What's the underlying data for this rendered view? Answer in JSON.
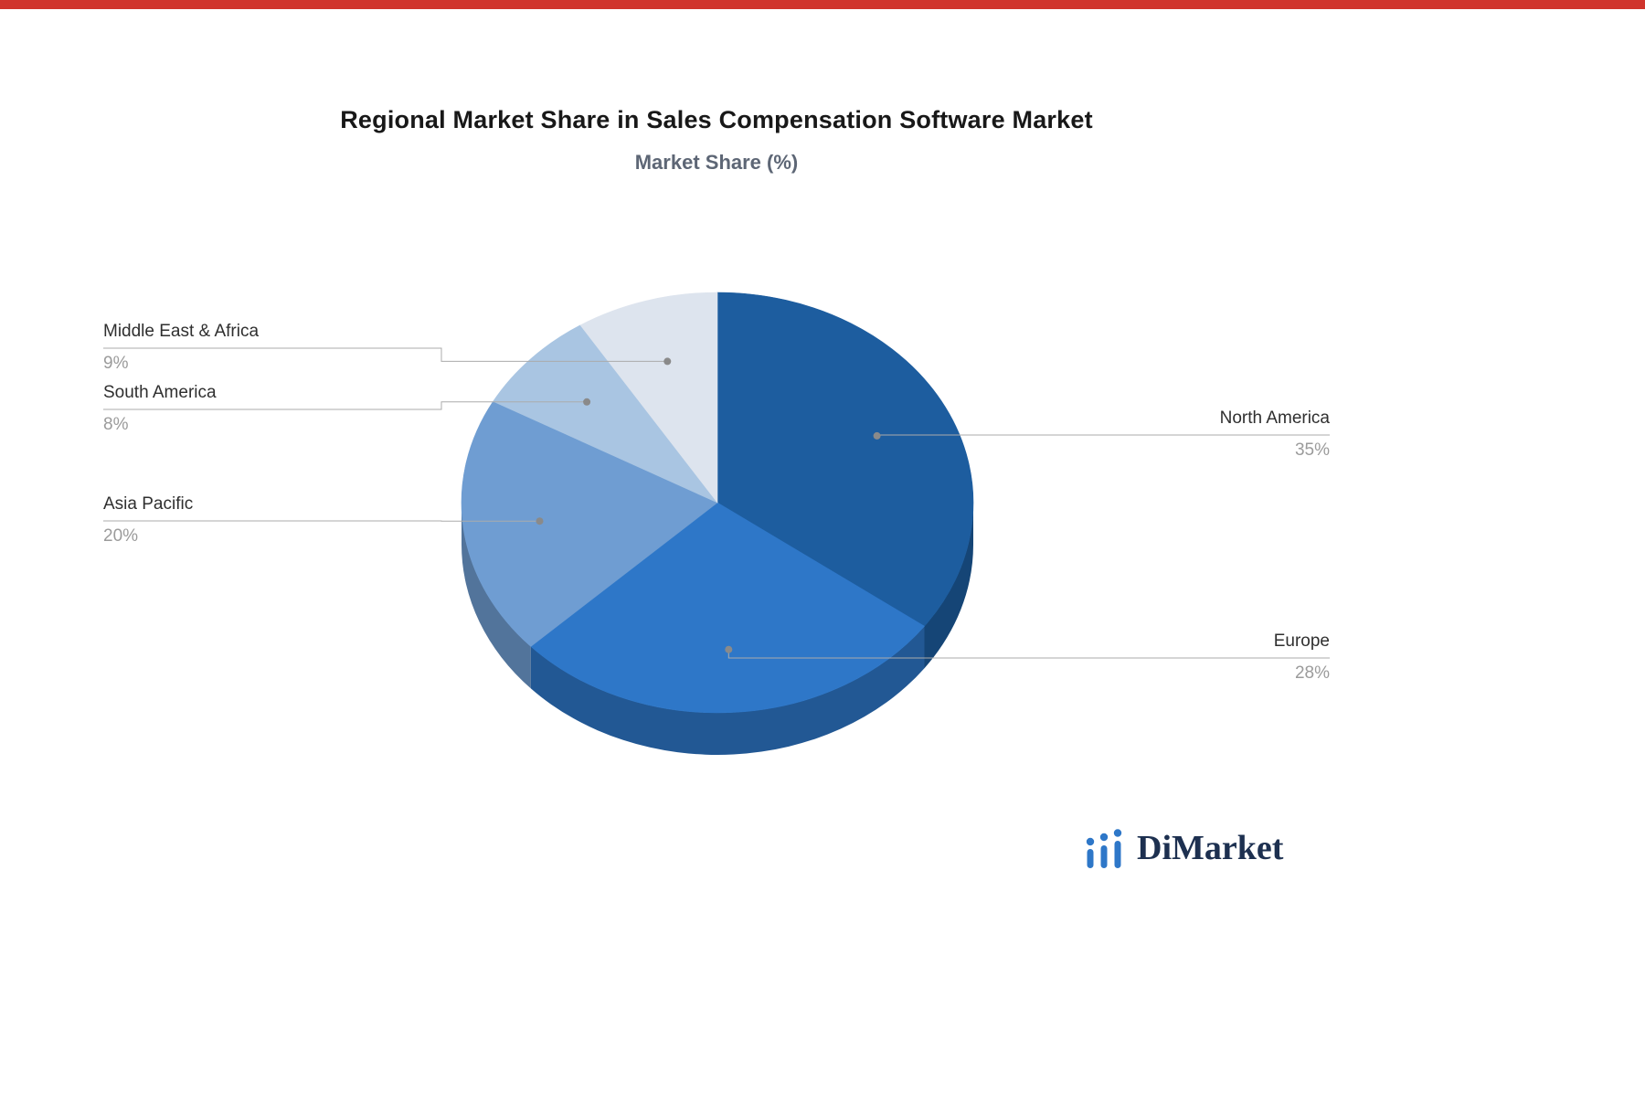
{
  "page": {
    "top_bar_color": "#d0342c",
    "background_color": "#ffffff"
  },
  "chart_data": {
    "type": "pie",
    "title": "Regional Market Share in Sales Compensation Software Market",
    "subtitle": "Market Share (%)",
    "labels": [
      "North America",
      "Europe",
      "Asia Pacific",
      "South America",
      "Middle East & Africa"
    ],
    "values": [
      35,
      28,
      20,
      8,
      9
    ],
    "value_labels": [
      "35%",
      "28%",
      "20%",
      "8%",
      "9%"
    ],
    "unit": "%",
    "colors": [
      "#1d5d9f",
      "#2e77c8",
      "#6f9dd2",
      "#a9c5e2",
      "#dde4ee"
    ],
    "start_angle_deg": 0,
    "direction": "clockwise",
    "effect": "3d",
    "legend": "none",
    "leader_line_color": "#ababab",
    "label_text_color": "#2f2f2f",
    "value_text_color": "#9b9b9b"
  },
  "branding": {
    "logo_text": "DiMarket",
    "logo_text_color": "#1d3050",
    "icon_name": "bar-chart-icon",
    "icon_color": "#2e77c8"
  }
}
